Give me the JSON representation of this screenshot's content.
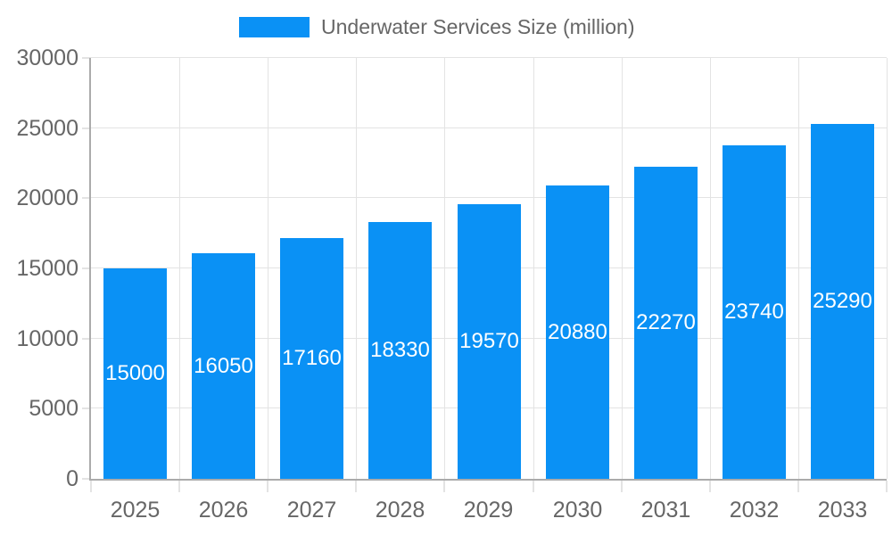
{
  "chart_data": {
    "type": "bar",
    "title": "",
    "legend": {
      "label": "Underwater Services Size (million)",
      "position": "top"
    },
    "categories": [
      "2025",
      "2026",
      "2027",
      "2028",
      "2029",
      "2030",
      "2031",
      "2032",
      "2033"
    ],
    "series": [
      {
        "name": "Underwater Services Size (million)",
        "values": [
          15000,
          16050,
          17160,
          18330,
          19570,
          20880,
          22270,
          23740,
          25290
        ]
      }
    ],
    "value_labels_shown": true,
    "xlabel": "",
    "ylabel": "",
    "ylim": [
      0,
      30000
    ],
    "y_ticks": [
      0,
      5000,
      10000,
      15000,
      20000,
      25000,
      30000
    ],
    "grid": true,
    "colors": {
      "bar": "#0a91f5",
      "grid": "#e3e3e3",
      "axis": "#ababab",
      "tick_label": "#666666",
      "legend_text": "#666666",
      "bar_value_label": "#ffffff",
      "background": "#ffffff"
    }
  }
}
